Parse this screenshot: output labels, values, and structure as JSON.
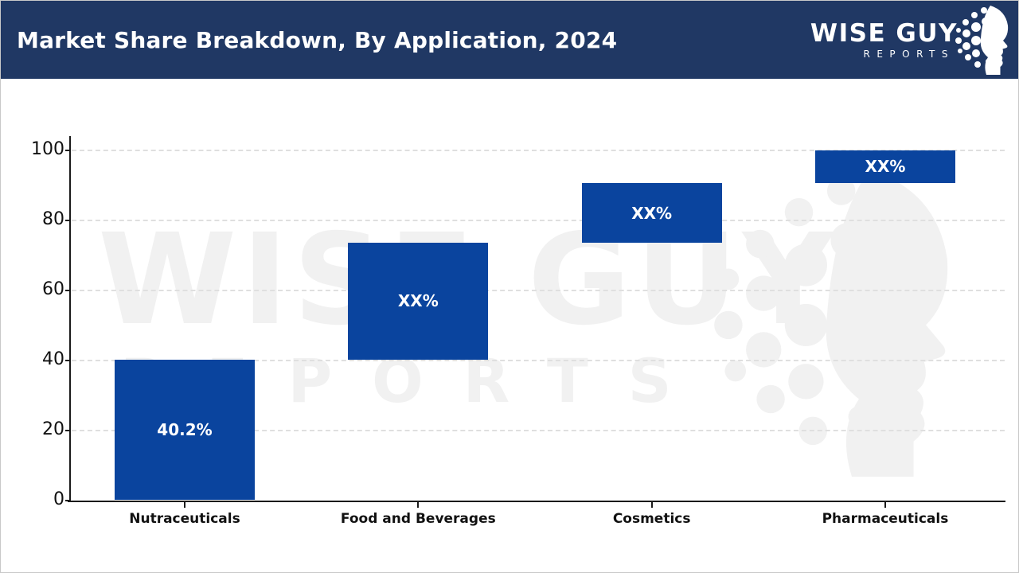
{
  "header": {
    "title": "Market Share Breakdown, By Application, 2024",
    "background_color": "#203864",
    "logo": {
      "line1": "WISE GUY",
      "line2": "REPORTS"
    }
  },
  "watermark": {
    "line1": "WISE GUY",
    "line2": "REPORTS"
  },
  "chart_data": {
    "type": "bar",
    "subtype": "waterfall",
    "title": "Market Share Breakdown, By Application, 2024",
    "xlabel": "",
    "ylabel": "",
    "categories": [
      "Nutraceuticals",
      "Food and Beverages",
      "Cosmetics",
      "Pharmaceuticals"
    ],
    "segments": [
      {
        "category": "Nutraceuticals",
        "start": 0,
        "end": 40.2,
        "label": "40.2%"
      },
      {
        "category": "Food and Beverages",
        "start": 40.2,
        "end": 73.5,
        "label": "XX%"
      },
      {
        "category": "Cosmetics",
        "start": 73.5,
        "end": 90.5,
        "label": "XX%"
      },
      {
        "category": "Pharmaceuticals",
        "start": 90.5,
        "end": 100,
        "label": "XX%"
      }
    ],
    "y_ticks": [
      0,
      20,
      40,
      60,
      80,
      100
    ],
    "ylim": [
      0,
      104
    ],
    "grid": "horizontal dashed",
    "legend": "none",
    "bar_color": "#0a449e",
    "bar_label_color": "#ffffff",
    "axis_color": "#1a1a1a",
    "gridline_color": "#dfdfdf"
  }
}
